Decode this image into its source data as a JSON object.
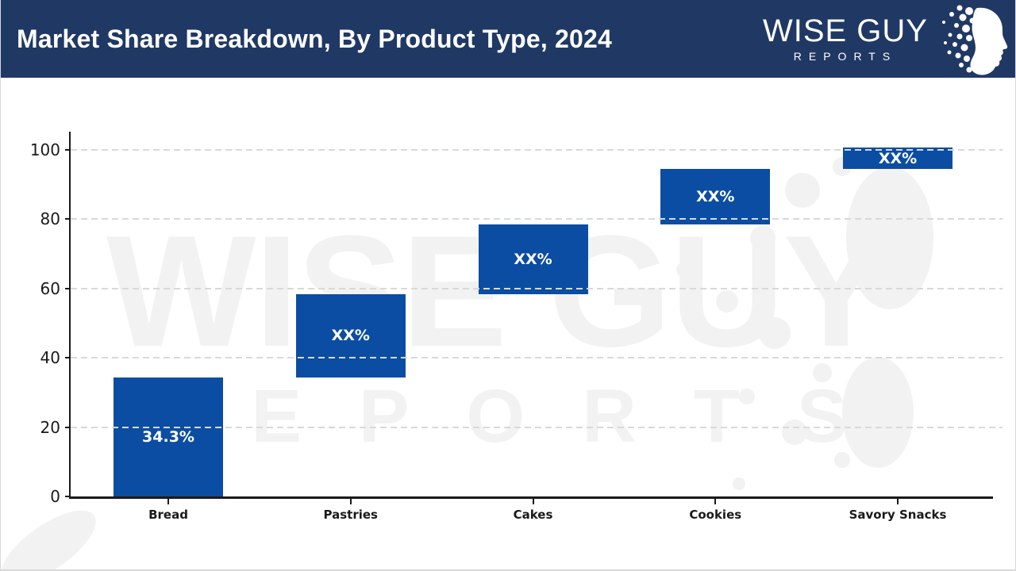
{
  "header": {
    "title": "Market Share Breakdown, By Product Type, 2024",
    "logo": {
      "line1": "WISE GUY",
      "line2": "REPORTS"
    }
  },
  "watermark": {
    "line1": "WISE GUY",
    "line2": "REPORTS"
  },
  "colors": {
    "header_bg": "#203864",
    "bar": "#0b4da2",
    "grid": "#d9d9d9",
    "axis": "#1a1a1a",
    "bar_label": "#ffffff",
    "title_text": "#ffffff",
    "watermark": "#f2f2f2"
  },
  "chart_data": {
    "type": "bar",
    "subtype": "waterfall",
    "title": "Market Share Breakdown, By Product Type, 2024",
    "categories": [
      "Bread",
      "Pastries",
      "Cakes",
      "Cookies",
      "Savory Snacks"
    ],
    "segments": [
      {
        "category": "Bread",
        "start": 0,
        "end": 34.3,
        "label": "34.3%"
      },
      {
        "category": "Pastries",
        "start": 34.3,
        "end": 58.3,
        "label": "XX%"
      },
      {
        "category": "Cakes",
        "start": 58.3,
        "end": 78.3,
        "label": "XX%"
      },
      {
        "category": "Cookies",
        "start": 78.3,
        "end": 94.3,
        "label": "XX%"
      },
      {
        "category": "Savory Snacks",
        "start": 94.3,
        "end": 100.5,
        "label": "XX%"
      }
    ],
    "yticks": [
      0,
      20,
      40,
      60,
      80,
      100
    ],
    "ylim": [
      0,
      105
    ],
    "xlabel": "",
    "ylabel": "",
    "grid": "horizontal-dashed",
    "legend": "none"
  }
}
